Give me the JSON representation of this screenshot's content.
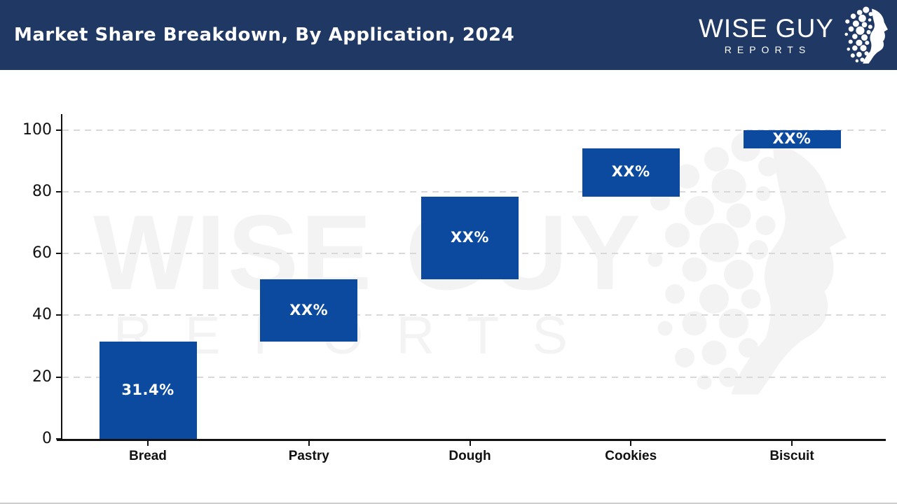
{
  "header": {
    "title": "Market Share Breakdown, By Application, 2024",
    "logo": {
      "wordmark": "WISE GUY",
      "subtext": "REPORTS",
      "icon": "head-dots-icon"
    }
  },
  "watermark": {
    "wordmark": "WISE GUY",
    "subtext": "REPORTS",
    "icon": "head-dots-icon"
  },
  "chart_data": {
    "type": "bar",
    "subtype": "waterfall-floating-bars",
    "title": "Market Share Breakdown, By Application, 2024",
    "categories": [
      "Bread",
      "Pastry",
      "Dough",
      "Cookies",
      "Biscuit"
    ],
    "segments": [
      {
        "category": "Bread",
        "start": 0,
        "end": 31.4,
        "label": "31.4%"
      },
      {
        "category": "Pastry",
        "start": 31.4,
        "end": 51.6,
        "label": "XX%"
      },
      {
        "category": "Dough",
        "start": 51.6,
        "end": 78.4,
        "label": "XX%"
      },
      {
        "category": "Cookies",
        "start": 78.4,
        "end": 94.0,
        "label": "XX%"
      },
      {
        "category": "Biscuit",
        "start": 94.0,
        "end": 100.0,
        "label": "XX%"
      }
    ],
    "y_ticks": [
      0,
      20,
      40,
      60,
      80,
      100
    ],
    "ylim": [
      0,
      105
    ],
    "xlabel": "",
    "ylabel": "",
    "grid": "horizontal-dashed",
    "legend": "none",
    "bar_color": "#0B4A9F",
    "bar_label_color": "#FFFFFF"
  },
  "colors": {
    "header_bg": "#1F3864",
    "bar": "#0B4A9F",
    "axis": "#111111",
    "gridline": "#D9D9D9",
    "watermark": "#F3F3F3",
    "title_text": "#FFFFFF",
    "bottom_line": "#CCCCCC"
  }
}
